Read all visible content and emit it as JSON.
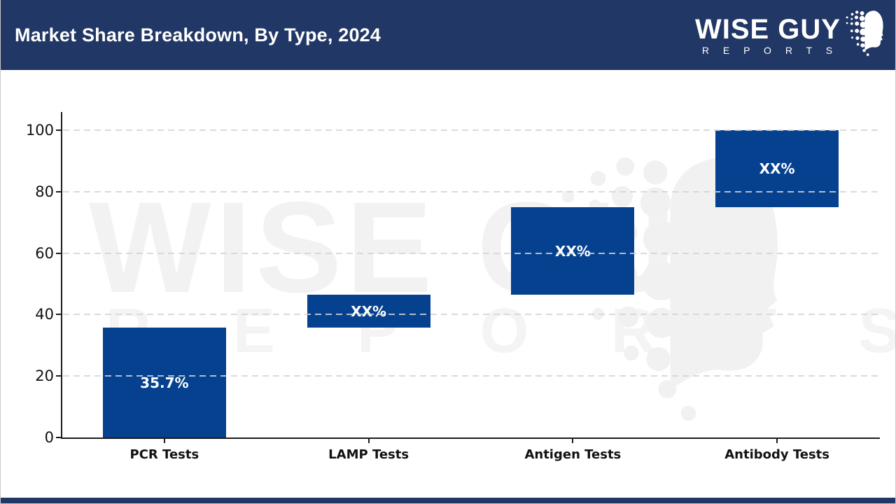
{
  "header": {
    "title": "Market Share Breakdown, By Type, 2024",
    "bg_color": "#213765",
    "logo": {
      "line1": "WISE GUY",
      "line2": "R E P O R T S"
    }
  },
  "watermark": {
    "line1": "WISE GU",
    "line2": "R E P O R T S"
  },
  "chart_data": {
    "type": "bar",
    "subtype": "waterfall",
    "title": "Market Share Breakdown, By Type, 2024",
    "categories": [
      "PCR Tests",
      "LAMP Tests",
      "Antigen Tests",
      "Antibody Tests"
    ],
    "segments": [
      {
        "category": "PCR Tests",
        "start": 0,
        "end": 35.7,
        "label": "35.7%"
      },
      {
        "category": "LAMP Tests",
        "start": 35.7,
        "end": 46.4,
        "label": "XX%"
      },
      {
        "category": "Antigen Tests",
        "start": 46.4,
        "end": 75,
        "label": "XX%"
      },
      {
        "category": "Antibody Tests",
        "start": 75,
        "end": 100,
        "label": "XX%"
      }
    ],
    "yticks": [
      0,
      20,
      40,
      60,
      80,
      100
    ],
    "ylim": [
      0,
      105
    ],
    "xlabel": "",
    "ylabel": "",
    "grid": "horizontal-dashed",
    "legend": "none",
    "bar_color": "#05418f",
    "bar_label_color": "#ffffff",
    "axis_color": "#1c1c1c",
    "grid_color": "#d4d4d4"
  },
  "footer": {
    "bar_color": "#213765"
  }
}
